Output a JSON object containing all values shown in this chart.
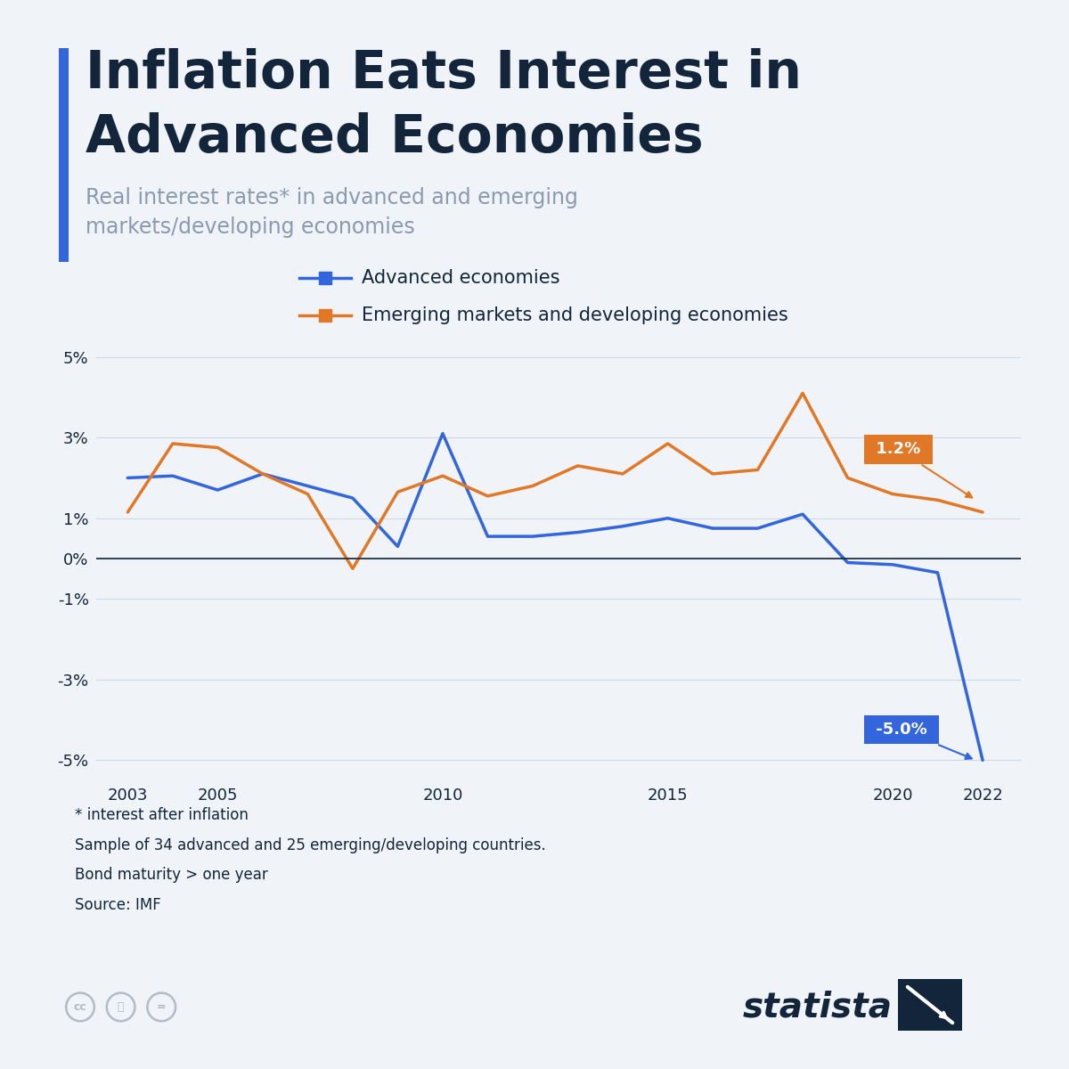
{
  "title_line1": "Inflation Eats Interest in",
  "title_line2": "Advanced Economies",
  "subtitle": "Real interest rates* in advanced and emerging\nmarkets/developing economies",
  "title_color": "#12253a",
  "subtitle_color": "#8a9ab0",
  "background_color": "#f0f4f8",
  "accent_bar_color": "#3366dd",
  "years": [
    2003,
    2004,
    2005,
    2006,
    2007,
    2008,
    2009,
    2010,
    2011,
    2012,
    2013,
    2014,
    2015,
    2016,
    2017,
    2018,
    2019,
    2020,
    2021,
    2022
  ],
  "advanced": [
    2.0,
    2.05,
    1.7,
    2.1,
    1.8,
    1.5,
    0.3,
    3.1,
    0.55,
    0.55,
    0.65,
    0.8,
    1.0,
    0.75,
    0.75,
    1.1,
    -0.1,
    -0.15,
    -0.35,
    -5.0
  ],
  "emerging": [
    1.15,
    2.85,
    2.75,
    2.1,
    1.6,
    -0.25,
    1.65,
    2.05,
    1.55,
    1.8,
    2.3,
    2.1,
    2.85,
    2.1,
    2.2,
    4.1,
    2.0,
    1.6,
    1.45,
    1.15
  ],
  "advanced_color": "#3366dd",
  "emerging_color": "#e07828",
  "advanced_label": "Advanced economies",
  "emerging_label": "Emerging markets and developing economies",
  "advanced_end_label": "-5.0%",
  "emerging_end_label": "1.2%",
  "ylim_min": -5.5,
  "ylim_max": 5.5,
  "yticks": [
    -5,
    -3,
    -1,
    0,
    1,
    3,
    5
  ],
  "ytick_labels": [
    "-5%",
    "-3%",
    "-1%",
    "0%",
    "1%",
    "3%",
    "5%"
  ],
  "xtick_positions": [
    2003,
    2005,
    2010,
    2015,
    2020,
    2022
  ],
  "xtick_labels": [
    "2003",
    "2005",
    "2010",
    "2015",
    "2020",
    "2022"
  ],
  "footnote_lines": [
    "* interest after inflation",
    "Sample of 34 advanced and 25 emerging/developing countries.",
    "Bond maturity > one year",
    "Source: IMF"
  ],
  "footnote_color": "#12253a",
  "line_width": 2.5,
  "zero_line_color": "#12253a",
  "grid_color": "#d0d8e4"
}
